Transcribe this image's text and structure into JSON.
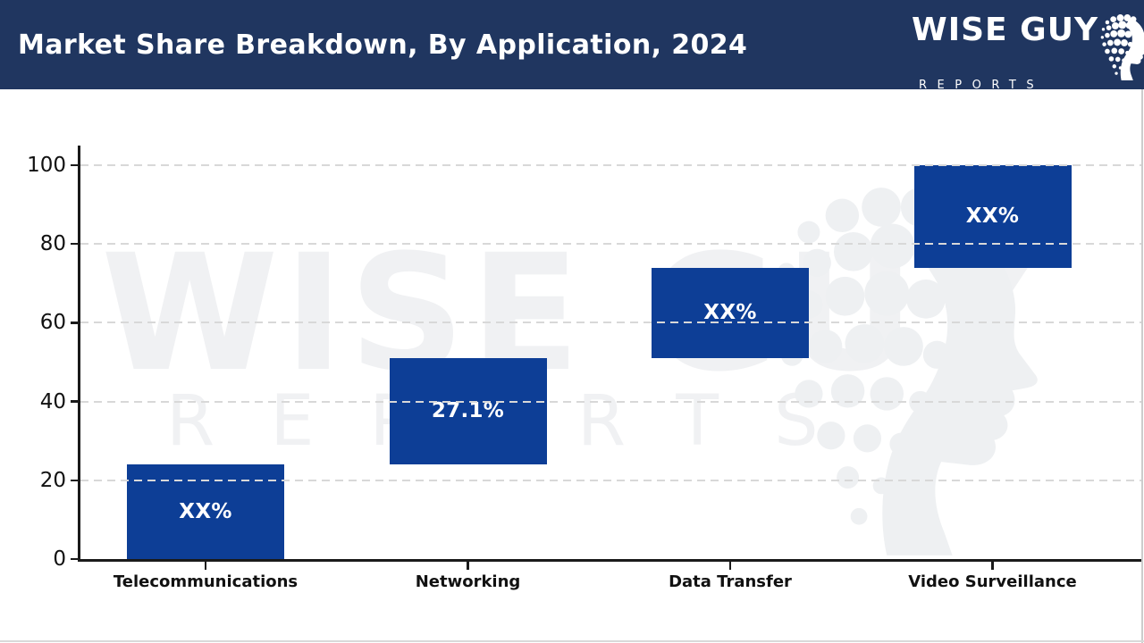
{
  "header": {
    "title": "Market Share Breakdown, By Application, 2024",
    "logo": {
      "line1": "WISE GUY",
      "line2": "REPORTS"
    }
  },
  "watermark": {
    "line1": "WISE GUY",
    "line2": "REPORTS"
  },
  "colors": {
    "header_bg": "#203660",
    "bar": "#0d3e96",
    "gridline": "#d8d8d8",
    "axis": "#1a1a1a",
    "watermark": "#f0f1f3"
  },
  "chart_data": {
    "type": "bar",
    "subtype": "waterfall-floating-segments",
    "title": "Market Share Breakdown, By Application, 2024",
    "categories": [
      "Telecommunications",
      "Networking",
      "Data Transfer",
      "Video Surveillance"
    ],
    "segments": [
      {
        "category": "Telecommunications",
        "start": 0.0,
        "end": 24.0,
        "label": "XX%"
      },
      {
        "category": "Networking",
        "start": 24.0,
        "end": 51.1,
        "label": "27.1%"
      },
      {
        "category": "Data Transfer",
        "start": 51.1,
        "end": 74.0,
        "label": "XX%"
      },
      {
        "category": "Video Surveillance",
        "start": 74.0,
        "end": 100.0,
        "label": "XX%"
      }
    ],
    "yticks": [
      0,
      20,
      40,
      60,
      80,
      100
    ],
    "ylim": [
      0,
      105
    ],
    "xlabel": "",
    "ylabel": "",
    "grid": "horizontal-dashed-over-bars",
    "legend": "none",
    "value_note": "only Networking shows a numeric value (27.1%); others masked as XX%"
  }
}
